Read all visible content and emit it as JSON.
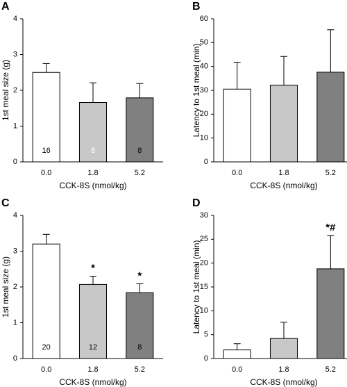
{
  "chart_data": [
    {
      "type": "bar",
      "panel": "A",
      "xlabel": "CCK-8S (nmol/kg)",
      "ylabel": "1st meal size (g)",
      "categories": [
        "0.0",
        "1.8",
        "5.2"
      ],
      "values": [
        2.5,
        1.66,
        1.79
      ],
      "errors": [
        0.25,
        0.55,
        0.4
      ],
      "colors": [
        "#ffffff",
        "#c8c8c8",
        "#808080"
      ],
      "n": [
        16,
        8,
        8
      ],
      "n_label_colors": [
        "#000000",
        "#ffffff",
        "#000000"
      ],
      "ylim": [
        0,
        4
      ],
      "yticks": [
        0,
        1,
        2,
        3,
        4
      ]
    },
    {
      "type": "bar",
      "panel": "B",
      "xlabel": "CCK-8S (nmol/kg)",
      "ylabel": "Latency to 1st meal (min)",
      "categories": [
        "0.0",
        "1.8",
        "5.2"
      ],
      "values": [
        30.5,
        32.2,
        37.6
      ],
      "errors": [
        11.3,
        12,
        17.8
      ],
      "colors": [
        "#ffffff",
        "#c8c8c8",
        "#808080"
      ],
      "ylim": [
        0,
        60
      ],
      "yticks": [
        0,
        10,
        20,
        30,
        40,
        50,
        60
      ]
    },
    {
      "type": "bar",
      "panel": "C",
      "xlabel": "CCK-8S (nmol/kg)",
      "ylabel": "1st meal size (g)",
      "categories": [
        "0.0",
        "1.8",
        "5.2"
      ],
      "values": [
        3.2,
        2.07,
        1.84
      ],
      "errors": [
        0.27,
        0.23,
        0.25
      ],
      "colors": [
        "#ffffff",
        "#c8c8c8",
        "#808080"
      ],
      "n": [
        20,
        12,
        8
      ],
      "n_label_colors": [
        "#000000",
        "#000000",
        "#000000"
      ],
      "annotations": [
        null,
        "*",
        "*"
      ],
      "ylim": [
        0,
        4
      ],
      "yticks": [
        0,
        1,
        2,
        3,
        4
      ]
    },
    {
      "type": "bar",
      "panel": "D",
      "xlabel": "CCK-8S (nmol/kg)",
      "ylabel": "Latency to 1st meal (min)",
      "categories": [
        "0.0",
        "1.8",
        "5.2"
      ],
      "values": [
        1.8,
        4.2,
        18.8
      ],
      "errors": [
        1.3,
        3.4,
        7
      ],
      "colors": [
        "#ffffff",
        "#c8c8c8",
        "#808080"
      ],
      "annotations": [
        null,
        null,
        "*#"
      ],
      "ylim": [
        0,
        30
      ],
      "yticks": [
        0,
        5,
        10,
        15,
        20,
        25,
        30
      ]
    }
  ]
}
